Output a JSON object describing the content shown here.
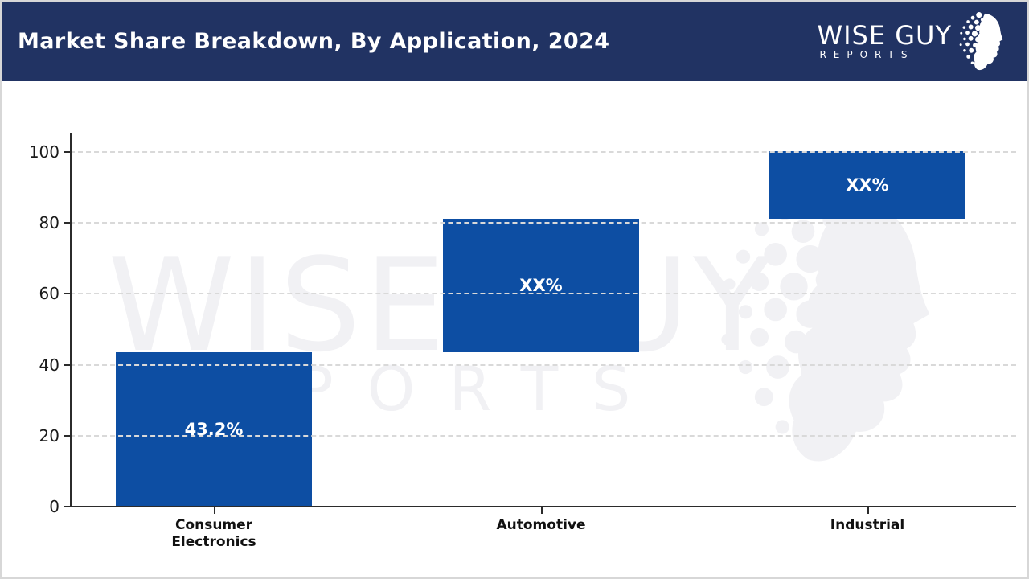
{
  "header": {
    "title": "Market Share Breakdown, By Application, 2024",
    "logo": {
      "line1": "WISE GUY",
      "line2": "REPORTS"
    }
  },
  "watermark": {
    "line1": "WISE GUY",
    "line2": "REPORTS"
  },
  "colors": {
    "header_bg": "#213363",
    "bar": "#0d4ea3",
    "gridline": "#d9d9d9",
    "axis": "#2b2b2b",
    "bar_label": "#ffffff",
    "watermark": "#f1f1f4"
  },
  "chart_data": {
    "type": "bar",
    "subtype": "waterfall",
    "title": "Market Share Breakdown, By Application, 2024",
    "xlabel": "",
    "ylabel": "",
    "categories": [
      "Consumer Electronics",
      "Automotive",
      "Industrial"
    ],
    "bars": [
      {
        "category": "Consumer Electronics",
        "start": 0,
        "end": 43.2,
        "label": "43.2%"
      },
      {
        "category": "Automotive",
        "start": 43.2,
        "end": 81,
        "label": "XX%"
      },
      {
        "category": "Industrial",
        "start": 81,
        "end": 100,
        "label": "XX%"
      }
    ],
    "yticks": [
      0,
      20,
      40,
      60,
      80,
      100
    ],
    "ytick_labels": [
      "0",
      "20",
      "40",
      "60",
      "80",
      "100"
    ],
    "ylim": [
      0,
      105
    ],
    "grid": "dashed horizontal, drawn above bars",
    "legend": "none"
  }
}
